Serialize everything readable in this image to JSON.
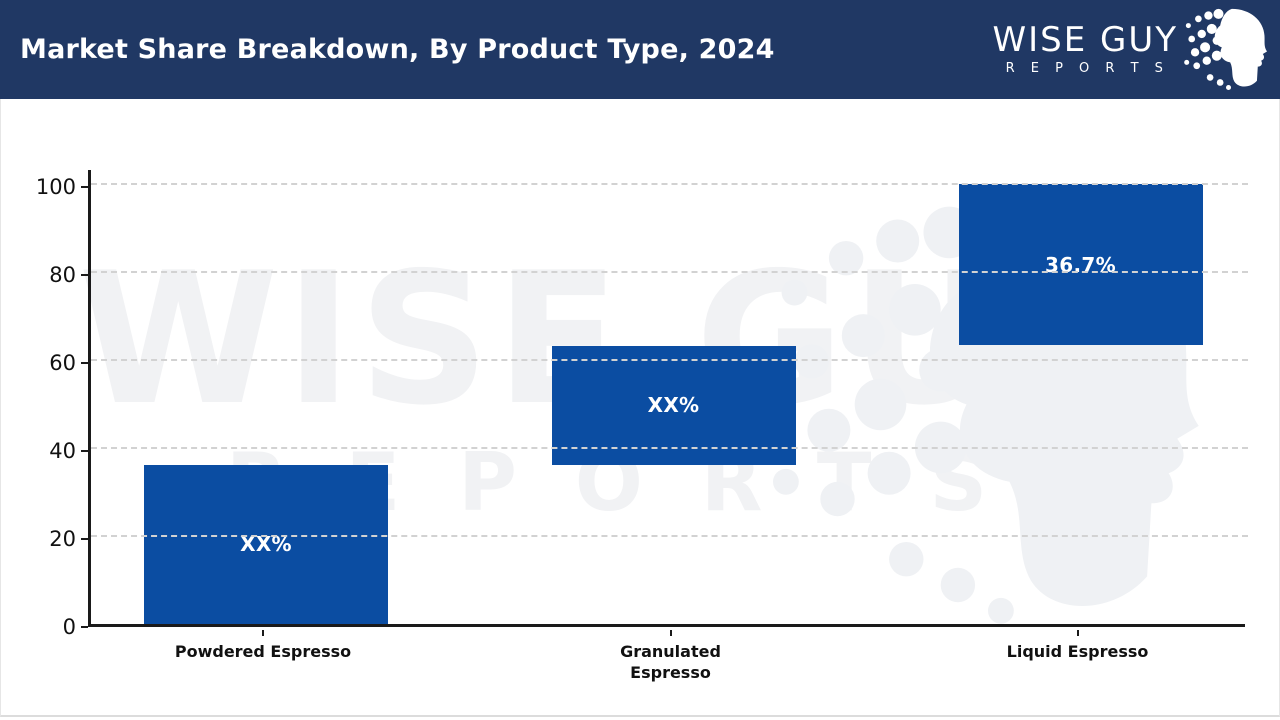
{
  "header": {
    "title": "Market Share Breakdown, By Product Type, 2024",
    "bg_color": "#203864",
    "logo": {
      "brand": "WISE GUY",
      "sub": "R E P O R T S",
      "head_icon": "dotted-head-profile"
    }
  },
  "watermark": {
    "brand": "WISE GUY",
    "sub": "REPORTS"
  },
  "chart_data": {
    "type": "bar",
    "subtype": "waterfall",
    "title": "Market Share Breakdown, By Product Type, 2024",
    "categories": [
      "Powdered Espresso",
      "Granulated\nEspresso",
      "Liquid Espresso"
    ],
    "bars": [
      {
        "category": "Powdered Espresso",
        "start": 0,
        "end": 36.2,
        "value": 36.2,
        "label": "XX%"
      },
      {
        "category": "Granulated Espresso",
        "start": 36.2,
        "end": 63.3,
        "value": 27.1,
        "label": "XX%"
      },
      {
        "category": "Liquid Espresso",
        "start": 63.3,
        "end": 100,
        "value": 36.7,
        "label": "36.7%"
      }
    ],
    "ylim": [
      0,
      100
    ],
    "yticks": [
      0,
      20,
      40,
      60,
      80,
      100
    ],
    "grid": "horizontal-dashed",
    "legend": "none",
    "bar_color": "#0b4da2",
    "label_color": "#ffffff",
    "gridline_color": "#d2d2d2",
    "axis_color": "#1a1a1a"
  }
}
